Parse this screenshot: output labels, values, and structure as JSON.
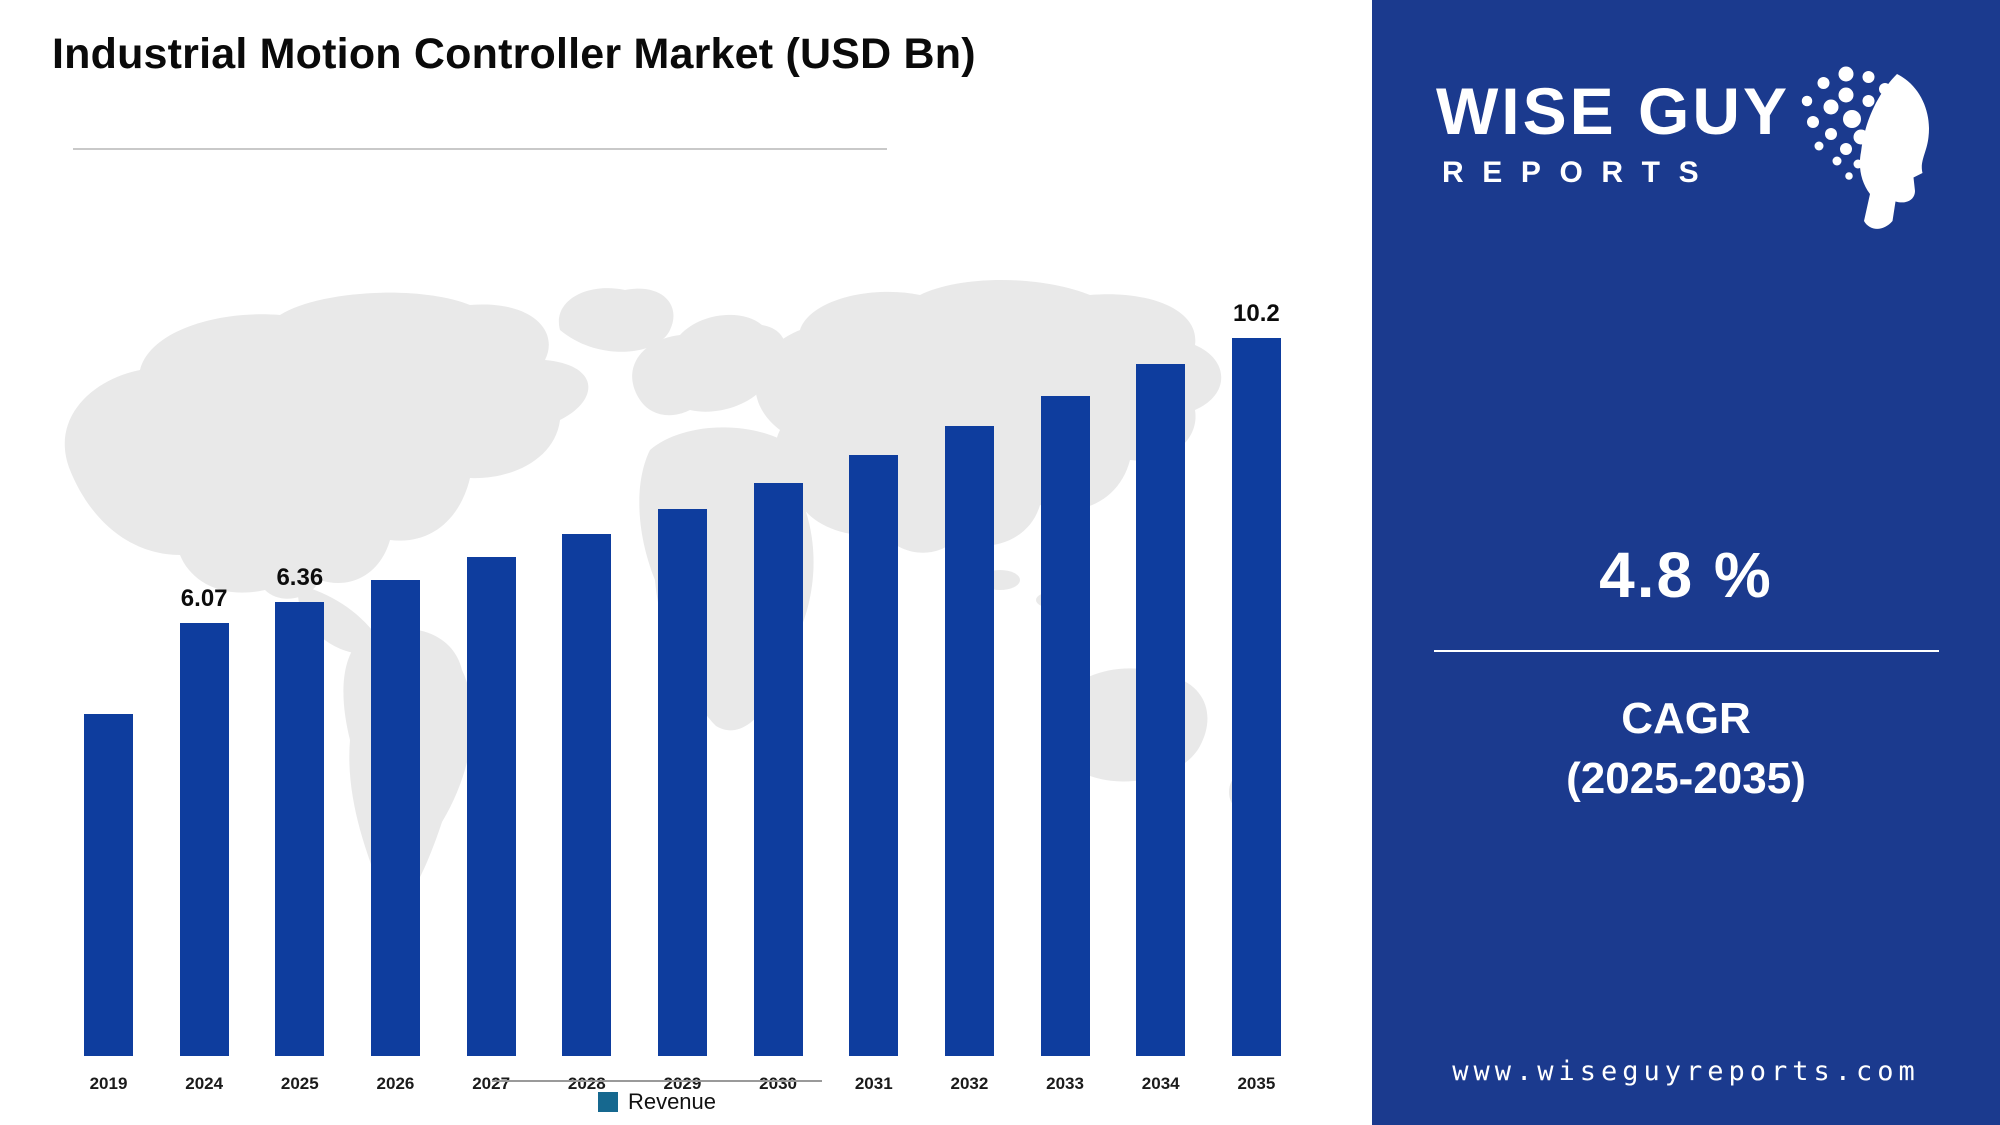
{
  "title": "Industrial Motion Controller Market (USD Bn)",
  "colors": {
    "bar": "#0e3d9e",
    "panel": "#1b3a8e",
    "legend_swatch": "#16688f",
    "map": "#e9e9e9"
  },
  "legend": {
    "label": "Revenue"
  },
  "chart_data": {
    "type": "bar",
    "title": "Industrial Motion Controller Market (USD Bn)",
    "xlabel": "",
    "ylabel": "",
    "categories": [
      "2019",
      "2024",
      "2025",
      "2026",
      "2027",
      "2028",
      "2029",
      "2030",
      "2031",
      "2032",
      "2033",
      "2034",
      "2035"
    ],
    "values": [
      4.79,
      6.07,
      6.36,
      6.67,
      6.99,
      7.32,
      7.67,
      8.04,
      8.43,
      8.83,
      9.26,
      9.7,
      10.2
    ],
    "data_labels": [
      "",
      "6.07",
      "6.36",
      "",
      "",
      "",
      "",
      "",
      "",
      "",
      "",
      "",
      "10.2"
    ],
    "ylim": [
      0,
      10.6
    ],
    "grid": false,
    "legend_position": "bottom",
    "series_name": "Revenue"
  },
  "panel": {
    "logo_line1": "WISE GUY",
    "logo_line2": "REPORTS",
    "cagr_value": "4.8 %",
    "cagr_label": "CAGR",
    "cagr_period": "(2025-2035)",
    "website": "www.wiseguyreports.com"
  }
}
